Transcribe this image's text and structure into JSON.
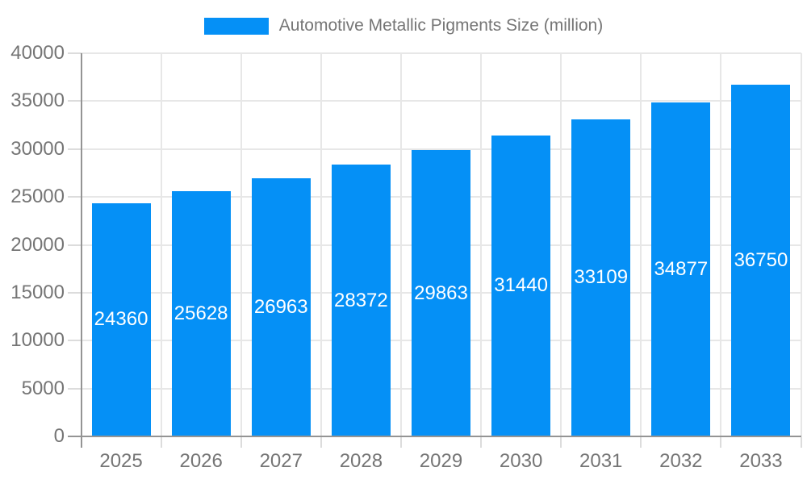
{
  "chart_data": {
    "type": "bar",
    "title": "Automotive Metallic Pigments Size (million)",
    "legend_position": "top",
    "categories": [
      "2025",
      "2026",
      "2027",
      "2028",
      "2029",
      "2030",
      "2031",
      "2032",
      "2033"
    ],
    "series": [
      {
        "name": "Automotive Metallic Pigments Size (million)",
        "values": [
          24360,
          25628,
          26963,
          28372,
          29863,
          31440,
          33109,
          34877,
          36750
        ]
      }
    ],
    "value_labels": [
      "24360",
      "25628",
      "26963",
      "28372",
      "29863",
      "31440",
      "33109",
      "34877",
      "36750"
    ],
    "value_labels_position": "inside-center",
    "xlabel": "",
    "ylabel": "",
    "ylim": [
      0,
      40000
    ],
    "yticks": [
      0,
      5000,
      10000,
      15000,
      20000,
      25000,
      30000,
      35000,
      40000
    ],
    "grid": true,
    "colors": {
      "bar": "#0590F6",
      "axis_line": "#949494",
      "gridline": "#e7e7e7",
      "tick": "#dcdcdc",
      "axis_text": "#757575",
      "value_label": "#ffffff",
      "background": "#ffffff"
    }
  }
}
